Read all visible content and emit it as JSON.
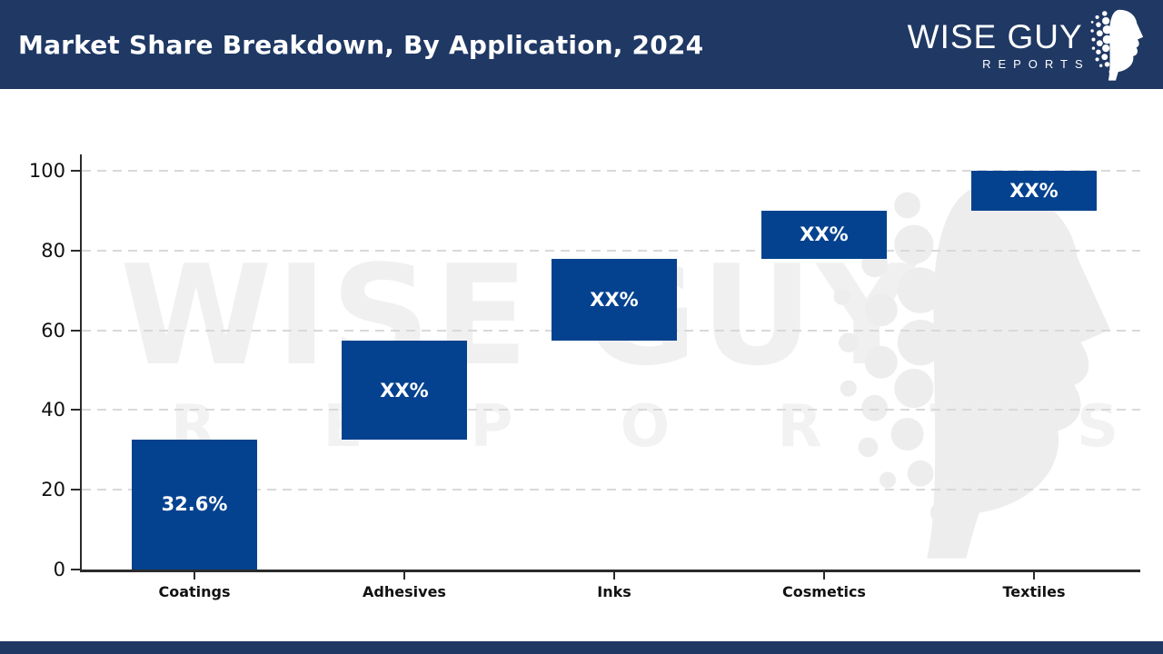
{
  "header": {
    "title": "Market Share Breakdown, By Application, 2024",
    "logo": {
      "line1": "WISE GUY",
      "line2": "REPORTS"
    }
  },
  "watermark": {
    "line1": "WISE GUY",
    "line2": "R E P O R T S"
  },
  "colors": {
    "header_bg": "#1f3864",
    "bar": "#04428f",
    "bar_label": "#ffffff",
    "grid": "#d9d9d9",
    "axis": "#2b2b2b",
    "tick_label": "#111111"
  },
  "chart_data": {
    "type": "bar",
    "subtype": "waterfall",
    "title": "Market Share Breakdown, By Application, 2024",
    "categories": [
      "Coatings",
      "Adhesives",
      "Inks",
      "Cosmetics",
      "Textiles"
    ],
    "segments": [
      {
        "category": "Coatings",
        "start": 0,
        "end": 32.6,
        "value": 32.6,
        "label": "32.6%"
      },
      {
        "category": "Adhesives",
        "start": 32.6,
        "end": 57.3,
        "value": 24.7,
        "label": "XX%"
      },
      {
        "category": "Inks",
        "start": 57.3,
        "end": 77.9,
        "value": 20.6,
        "label": "XX%"
      },
      {
        "category": "Cosmetics",
        "start": 77.9,
        "end": 90.0,
        "value": 12.1,
        "label": "XX%"
      },
      {
        "category": "Textiles",
        "start": 90.0,
        "end": 100.0,
        "value": 10.0,
        "label": "XX%"
      }
    ],
    "yticks": [
      0,
      20,
      40,
      60,
      80,
      100
    ],
    "ylim": [
      0,
      100
    ],
    "xlabel": "",
    "ylabel": "",
    "grid": "dashed-horizontal",
    "legend": false
  }
}
